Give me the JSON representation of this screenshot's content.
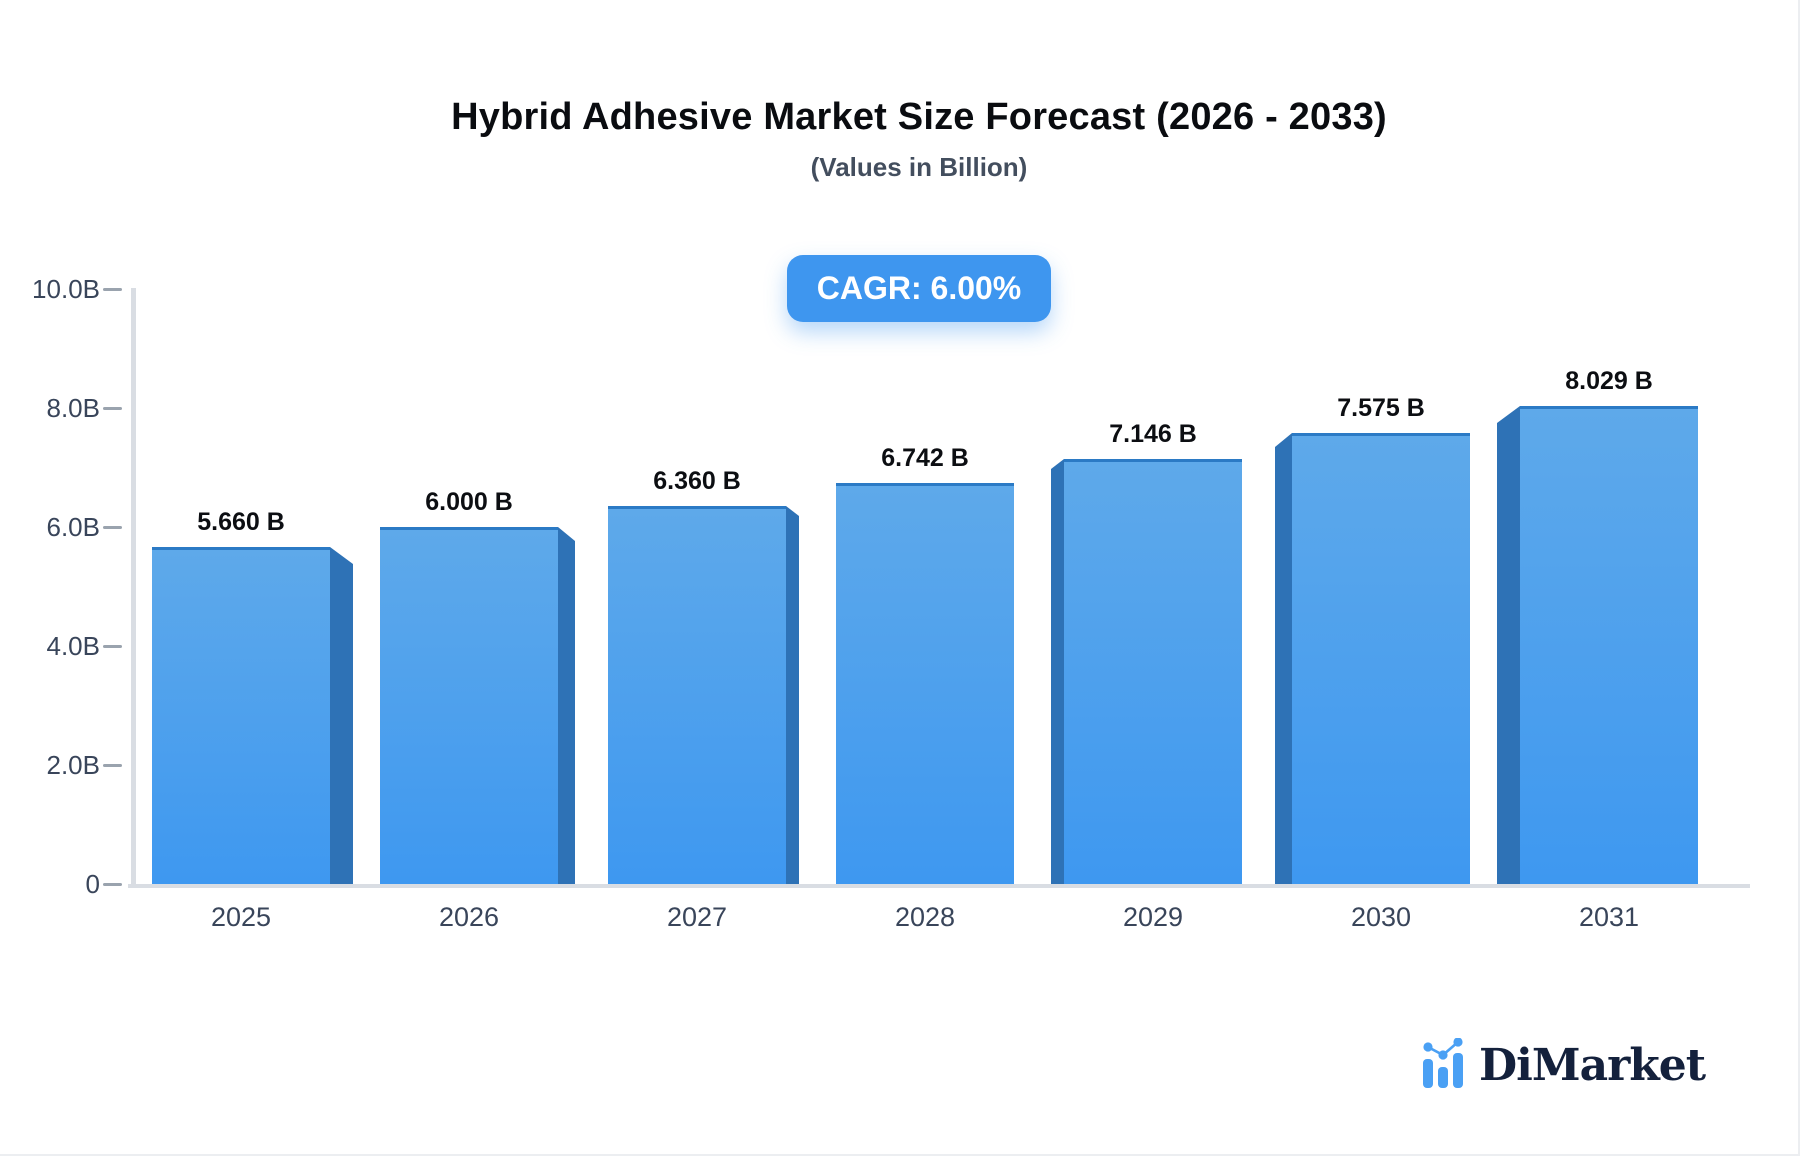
{
  "title": "Hybrid Adhesive Market Size Forecast (2026 - 2033)",
  "subtitle": "(Values in Billion)",
  "badge": {
    "label": "CAGR: 6.00%",
    "color": "#3e96ef"
  },
  "chart_data": {
    "type": "bar",
    "categories": [
      "2025",
      "2026",
      "2027",
      "2028",
      "2029",
      "2030",
      "2031"
    ],
    "values": [
      5.66,
      6.0,
      6.36,
      6.742,
      7.146,
      7.575,
      8.029
    ],
    "value_labels": [
      "5.660 B",
      "6.000 B",
      "6.360 B",
      "6.742 B",
      "7.146 B",
      "7.575 B",
      "8.029 B"
    ],
    "title": "Hybrid Adhesive Market Size Forecast (2026 - 2033)",
    "xlabel": "",
    "ylabel": "",
    "ylim": [
      0,
      10
    ],
    "grid": false,
    "legend": "none",
    "yticks": [
      {
        "label": "10.0B",
        "value": 10
      },
      {
        "label": "8.0B",
        "value": 8
      },
      {
        "label": "6.0B",
        "value": 6
      },
      {
        "label": "4.0B",
        "value": 4
      },
      {
        "label": "2.0B",
        "value": 2
      },
      {
        "label": "0",
        "value": 0
      }
    ],
    "colors": {
      "bar_face_top": "#5ea9ea",
      "bar_face_bottom": "#3e98f0",
      "bar_top_edge": "#2b7ac5",
      "bar_side_3d": "#2e72b6",
      "axis_line": "#d9dde3",
      "tick_mark": "#9aa3ae",
      "tick_text": "#39455a",
      "value_text": "#0c0e12"
    }
  },
  "logo": {
    "brand": "DiMarket",
    "icon": "bar-line-chart-logo",
    "accent": "#4aa0f4",
    "text_color": "#14213c"
  }
}
